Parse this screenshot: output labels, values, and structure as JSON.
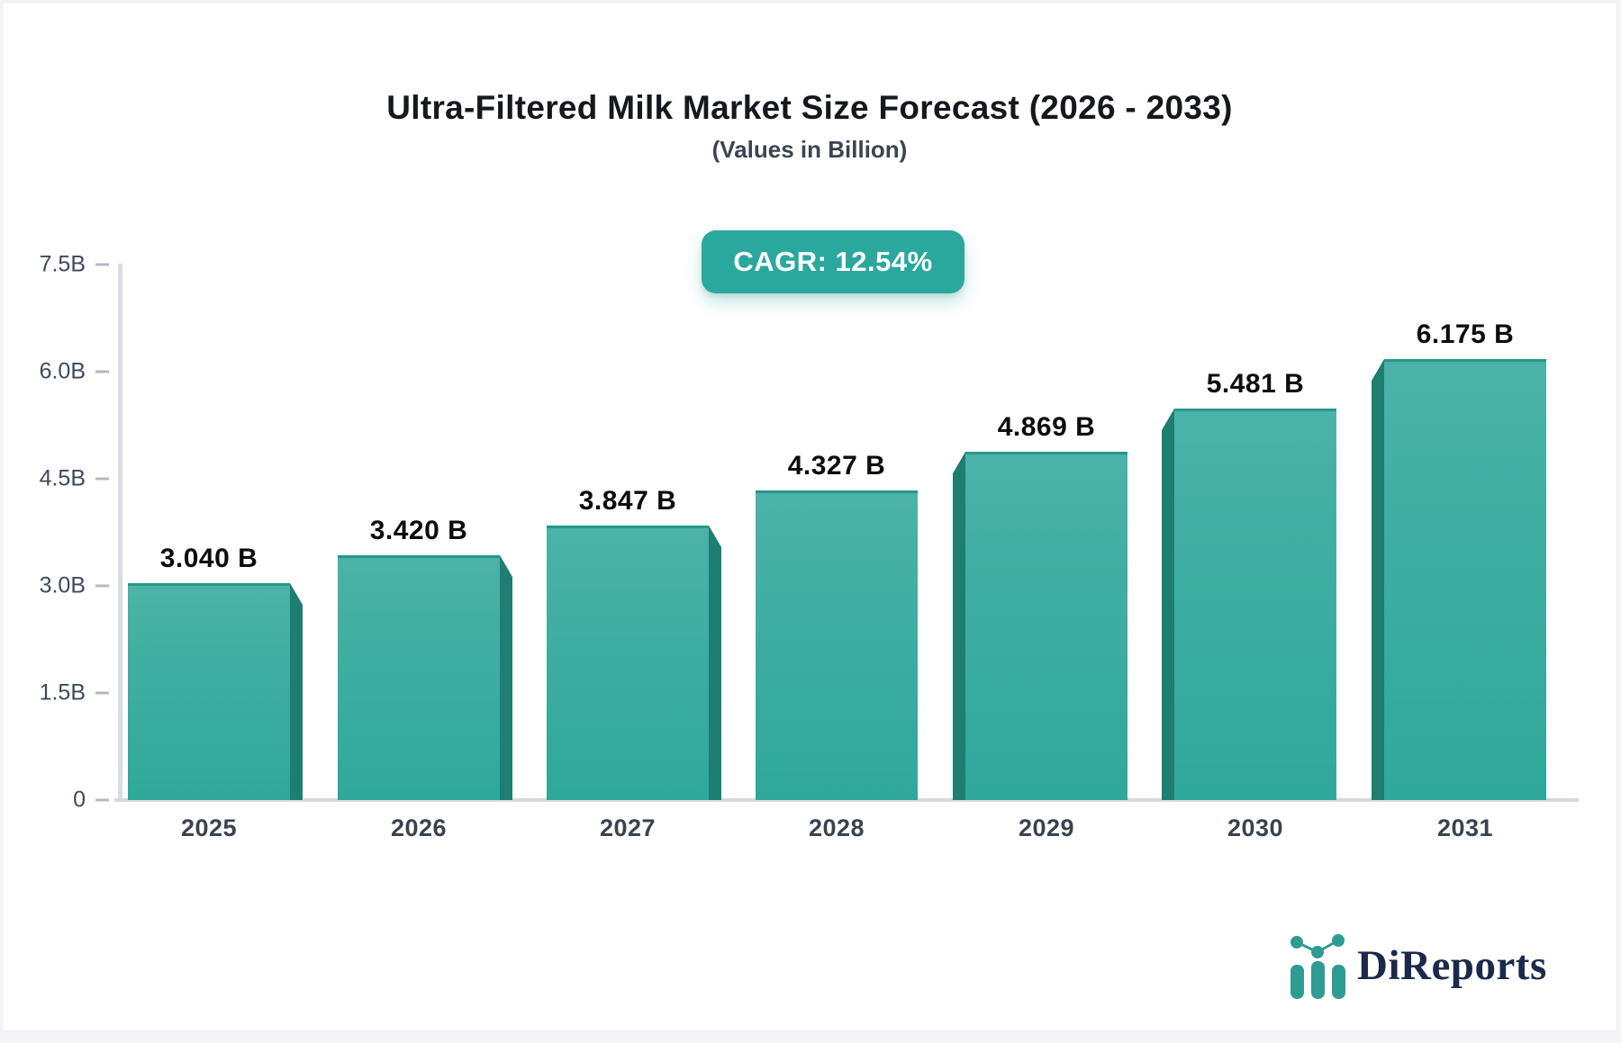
{
  "page": {
    "title": "Ultra-Filtered Milk Market Size Forecast (2026 - 2033)",
    "subtitle": "(Values in Billion)"
  },
  "badge": {
    "label": "CAGR: 12.54%"
  },
  "chart_data": {
    "type": "bar",
    "title": "Ultra-Filtered Milk Market Size Forecast (2026 - 2033)",
    "subtitle": "(Values in Billion)",
    "categories": [
      "2025",
      "2026",
      "2027",
      "2028",
      "2029",
      "2030",
      "2031"
    ],
    "values": [
      3.04,
      3.42,
      3.847,
      4.327,
      4.869,
      5.481,
      6.175
    ],
    "value_labels": [
      "3.040 B",
      "3.420 B",
      "3.847 B",
      "4.327 B",
      "4.869 B",
      "5.481 B",
      "6.175 B"
    ],
    "cagr_annotation": "CAGR: 12.54%",
    "xlabel": "",
    "ylabel": "",
    "ylim": [
      0,
      7.5
    ],
    "grid": false,
    "legend": false,
    "yticks": [
      {
        "label": "7.5B",
        "value": 7.5
      },
      {
        "label": "6.0B",
        "value": 6.0
      },
      {
        "label": "4.5B",
        "value": 4.5
      },
      {
        "label": "3.0B",
        "value": 3.0
      },
      {
        "label": "1.5B",
        "value": 1.5
      },
      {
        "label": "0",
        "value": 0
      }
    ]
  },
  "colors": {
    "badge_bg": "#2ba89d",
    "bar_top": "#4bb2a7",
    "bar_bottom": "#2ea89a",
    "bar_side": "#1e7e72",
    "logo_navy": "#1b2a4a",
    "logo_teal": "#2f9c93"
  },
  "logo": {
    "text": "DiReports",
    "icon": "bar-chart-logo-icon"
  }
}
